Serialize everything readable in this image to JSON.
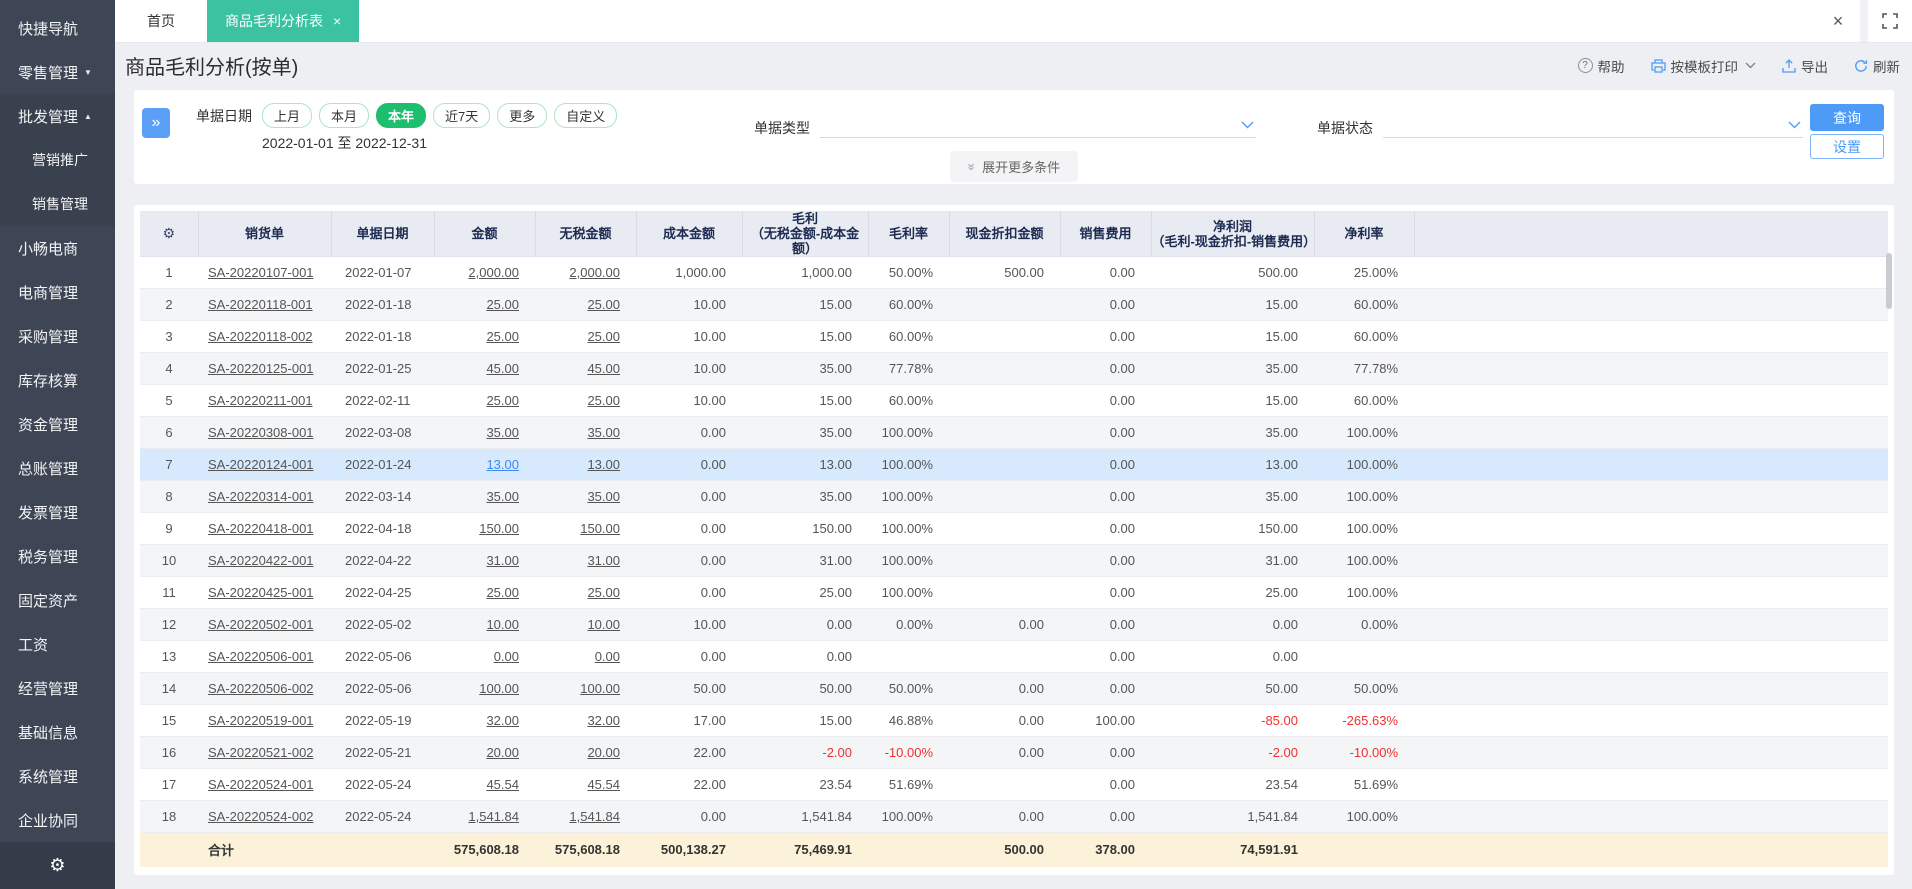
{
  "colors": {
    "sidebar_bg": "#3e4554",
    "active_tab_green": "#3bc3a1",
    "accent_blue": "#4d9bf7",
    "selected_pill_green": "#1dbf6e",
    "negative_red": "#f23030",
    "total_row_bg": "#fbf2d9",
    "selected_row_bg": "#d7e9fc"
  },
  "icons": {
    "collapse_panel": "»",
    "expand_more_chevrons": "»",
    "gear": "⚙",
    "close": "×",
    "arrow_up": "▲",
    "arrow_down": "▼",
    "help_qmark": "?"
  },
  "sidebar": {
    "items": [
      {
        "key": "quick-nav",
        "label": "快捷导航",
        "type": "item"
      },
      {
        "key": "retail",
        "label": "零售管理",
        "type": "item",
        "arrow": "down"
      },
      {
        "key": "wholesale",
        "label": "批发管理",
        "type": "item",
        "arrow": "up",
        "expanded": true
      },
      {
        "key": "marketing",
        "label": "营销推广",
        "type": "sub"
      },
      {
        "key": "sales",
        "label": "销售管理",
        "type": "sub"
      },
      {
        "key": "xiaochang-ecom",
        "label": "小畅电商",
        "type": "item"
      },
      {
        "key": "ecom",
        "label": "电商管理",
        "type": "item"
      },
      {
        "key": "purchase",
        "label": "采购管理",
        "type": "item"
      },
      {
        "key": "inventory-accounting",
        "label": "库存核算",
        "type": "item"
      },
      {
        "key": "funds",
        "label": "资金管理",
        "type": "item"
      },
      {
        "key": "general-ledger",
        "label": "总账管理",
        "type": "item"
      },
      {
        "key": "invoice",
        "label": "发票管理",
        "type": "item"
      },
      {
        "key": "tax",
        "label": "税务管理",
        "type": "item"
      },
      {
        "key": "fixed-assets",
        "label": "固定资产",
        "type": "item"
      },
      {
        "key": "payroll",
        "label": "工资",
        "type": "item"
      },
      {
        "key": "operations",
        "label": "经营管理",
        "type": "item"
      },
      {
        "key": "basic-info",
        "label": "基础信息",
        "type": "item"
      },
      {
        "key": "system",
        "label": "系统管理",
        "type": "item"
      },
      {
        "key": "collaboration",
        "label": "企业协同",
        "type": "item"
      }
    ]
  },
  "tabs": {
    "home": "首页",
    "active_label": "商品毛利分析表"
  },
  "header": {
    "title": "商品毛利分析(按单)",
    "actions": {
      "help": "帮助",
      "print": "按模板打印",
      "export": "导出",
      "refresh": "刷新"
    }
  },
  "filters": {
    "date_label": "单据日期",
    "date_options": [
      "上月",
      "本月",
      "本年",
      "近7天",
      "更多",
      "自定义"
    ],
    "date_selected": "本年",
    "date_range": "2022-01-01 至 2022-12-31",
    "type_label": "单据类型",
    "status_label": "单据状态",
    "query_button": "查询",
    "settings_button": "设置",
    "expand_more": "展开更多条件"
  },
  "table": {
    "columns": [
      {
        "key": "order-no",
        "label": "销货单"
      },
      {
        "key": "date",
        "label": "单据日期"
      },
      {
        "key": "amount",
        "label": "金额"
      },
      {
        "key": "amount-notax",
        "label": "无税金额"
      },
      {
        "key": "cost",
        "label": "成本金额"
      },
      {
        "key": "gross-profit",
        "label": "毛利\n（无税金额-成本金额）"
      },
      {
        "key": "gross-margin",
        "label": "毛利率"
      },
      {
        "key": "cash-discount",
        "label": "现金折扣金额"
      },
      {
        "key": "selling-expense",
        "label": "销售费用"
      },
      {
        "key": "net-profit",
        "label": "净利润\n（毛利-现金折扣-销售费用）"
      },
      {
        "key": "net-margin",
        "label": "净利率"
      }
    ],
    "selected_row": 7,
    "rows": [
      [
        "1",
        "SA-20220107-001",
        "2022-01-07",
        "2,000.00",
        "2,000.00",
        "1,000.00",
        "1,000.00",
        "50.00%",
        "500.00",
        "0.00",
        "500.00",
        "25.00%"
      ],
      [
        "2",
        "SA-20220118-001",
        "2022-01-18",
        "25.00",
        "25.00",
        "10.00",
        "15.00",
        "60.00%",
        "",
        "0.00",
        "15.00",
        "60.00%"
      ],
      [
        "3",
        "SA-20220118-002",
        "2022-01-18",
        "25.00",
        "25.00",
        "10.00",
        "15.00",
        "60.00%",
        "",
        "0.00",
        "15.00",
        "60.00%"
      ],
      [
        "4",
        "SA-20220125-001",
        "2022-01-25",
        "45.00",
        "45.00",
        "10.00",
        "35.00",
        "77.78%",
        "",
        "0.00",
        "35.00",
        "77.78%"
      ],
      [
        "5",
        "SA-20220211-001",
        "2022-02-11",
        "25.00",
        "25.00",
        "10.00",
        "15.00",
        "60.00%",
        "",
        "0.00",
        "15.00",
        "60.00%"
      ],
      [
        "6",
        "SA-20220308-001",
        "2022-03-08",
        "35.00",
        "35.00",
        "0.00",
        "35.00",
        "100.00%",
        "",
        "0.00",
        "35.00",
        "100.00%"
      ],
      [
        "7",
        "SA-20220124-001",
        "2022-01-24",
        "13.00",
        "13.00",
        "0.00",
        "13.00",
        "100.00%",
        "",
        "0.00",
        "13.00",
        "100.00%"
      ],
      [
        "8",
        "SA-20220314-001",
        "2022-03-14",
        "35.00",
        "35.00",
        "0.00",
        "35.00",
        "100.00%",
        "",
        "0.00",
        "35.00",
        "100.00%"
      ],
      [
        "9",
        "SA-20220418-001",
        "2022-04-18",
        "150.00",
        "150.00",
        "0.00",
        "150.00",
        "100.00%",
        "",
        "0.00",
        "150.00",
        "100.00%"
      ],
      [
        "10",
        "SA-20220422-001",
        "2022-04-22",
        "31.00",
        "31.00",
        "0.00",
        "31.00",
        "100.00%",
        "",
        "0.00",
        "31.00",
        "100.00%"
      ],
      [
        "11",
        "SA-20220425-001",
        "2022-04-25",
        "25.00",
        "25.00",
        "0.00",
        "25.00",
        "100.00%",
        "",
        "0.00",
        "25.00",
        "100.00%"
      ],
      [
        "12",
        "SA-20220502-001",
        "2022-05-02",
        "10.00",
        "10.00",
        "10.00",
        "0.00",
        "0.00%",
        "0.00",
        "0.00",
        "0.00",
        "0.00%"
      ],
      [
        "13",
        "SA-20220506-001",
        "2022-05-06",
        "0.00",
        "0.00",
        "0.00",
        "0.00",
        "",
        "",
        "0.00",
        "0.00",
        ""
      ],
      [
        "14",
        "SA-20220506-002",
        "2022-05-06",
        "100.00",
        "100.00",
        "50.00",
        "50.00",
        "50.00%",
        "0.00",
        "0.00",
        "50.00",
        "50.00%"
      ],
      [
        "15",
        "SA-20220519-001",
        "2022-05-19",
        "32.00",
        "32.00",
        "17.00",
        "15.00",
        "46.88%",
        "0.00",
        "100.00",
        "-85.00",
        "-265.63%"
      ],
      [
        "16",
        "SA-20220521-002",
        "2022-05-21",
        "20.00",
        "20.00",
        "22.00",
        "-2.00",
        "-10.00%",
        "0.00",
        "0.00",
        "-2.00",
        "-10.00%"
      ],
      [
        "17",
        "SA-20220524-001",
        "2022-05-24",
        "45.54",
        "45.54",
        "22.00",
        "23.54",
        "51.69%",
        "",
        "0.00",
        "23.54",
        "51.69%"
      ],
      [
        "18",
        "SA-20220524-002",
        "2022-05-24",
        "1,541.84",
        "1,541.84",
        "0.00",
        "1,541.84",
        "100.00%",
        "0.00",
        "0.00",
        "1,541.84",
        "100.00%"
      ]
    ],
    "total": [
      "",
      "合计",
      "",
      "575,608.18",
      "575,608.18",
      "500,138.27",
      "75,469.91",
      "",
      "500.00",
      "378.00",
      "74,591.91",
      ""
    ]
  }
}
